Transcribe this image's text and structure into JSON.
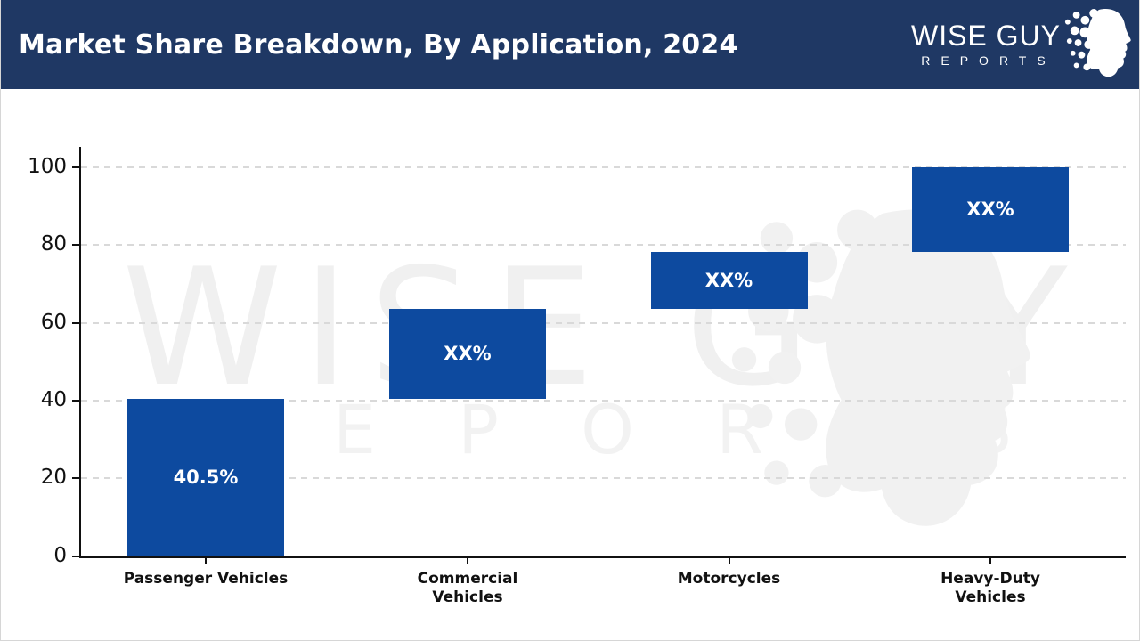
{
  "header": {
    "title": "Market Share Breakdown, By Application, 2024",
    "bg_color": "#1f3864",
    "logo": {
      "line1": "WISE GUY",
      "line2": "REPORTS"
    }
  },
  "watermark": {
    "line1": "WISE GUY",
    "line2": "R E P O R T S"
  },
  "chart_data": {
    "type": "bar",
    "subtype": "waterfall",
    "title": "Market Share Breakdown, By Application, 2024",
    "categories": [
      "Passenger Vehicles",
      "Commercial Vehicles",
      "Motorcycles",
      "Heavy-Duty Vehicles"
    ],
    "category_label_lines": [
      [
        "Passenger Vehicles"
      ],
      [
        "Commercial",
        "Vehicles"
      ],
      [
        "Motorcycles"
      ],
      [
        "Heavy-Duty",
        "Vehicles"
      ]
    ],
    "series": [
      {
        "name": "Market Share (%)",
        "segments": [
          {
            "category": "Passenger Vehicles",
            "start": 0,
            "end": 40.5,
            "label": "40.5%"
          },
          {
            "category": "Commercial Vehicles",
            "start": 40.5,
            "end": 63.5,
            "label": "XX%"
          },
          {
            "category": "Motorcycles",
            "start": 63.5,
            "end": 78.3,
            "label": "XX%"
          },
          {
            "category": "Heavy-Duty Vehicles",
            "start": 78.3,
            "end": 100,
            "label": "XX%"
          }
        ]
      }
    ],
    "xlabel": "",
    "ylabel": "",
    "yticks": [
      0,
      20,
      40,
      60,
      80,
      100
    ],
    "ylim": [
      0,
      105
    ],
    "grid": "horizontal dashed",
    "legend": "none",
    "bar_color": "#0d4a9f",
    "bar_label_color": "#ffffff",
    "axis_color": "#111111",
    "grid_color": "#d9d9d9"
  }
}
